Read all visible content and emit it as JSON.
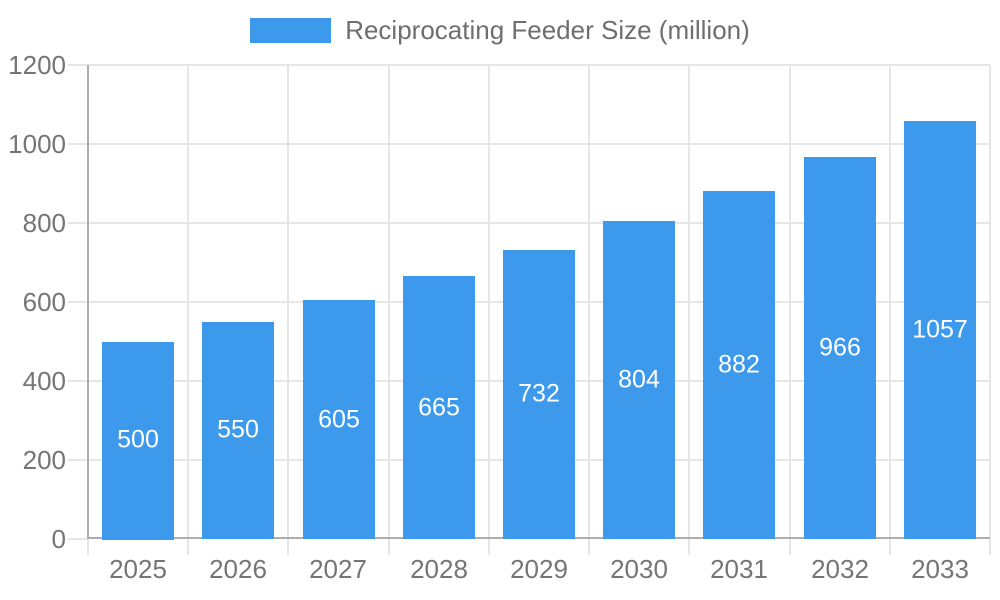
{
  "chart_data": {
    "type": "bar",
    "title": "Reciprocating Feeder Size (million)",
    "categories": [
      "2025",
      "2026",
      "2027",
      "2028",
      "2029",
      "2030",
      "2031",
      "2032",
      "2033"
    ],
    "values": [
      500,
      550,
      605,
      665,
      732,
      804,
      882,
      966,
      1057
    ],
    "xlabel": "",
    "ylabel": "",
    "ylim": [
      0,
      1200
    ],
    "yticks": [
      0,
      200,
      400,
      600,
      800,
      1000,
      1200
    ],
    "grid": true,
    "legend_position": "top",
    "legend_label": "Reciprocating Feeder Size (million)",
    "colors": {
      "bar": "#3C99EB",
      "grid": "#E6E6E6",
      "axis": "#ADADAD",
      "tick_text": "#757575",
      "legend_text": "#6E6E6E",
      "value_text": "#FFFFFF",
      "background": "#FFFFFF"
    }
  }
}
